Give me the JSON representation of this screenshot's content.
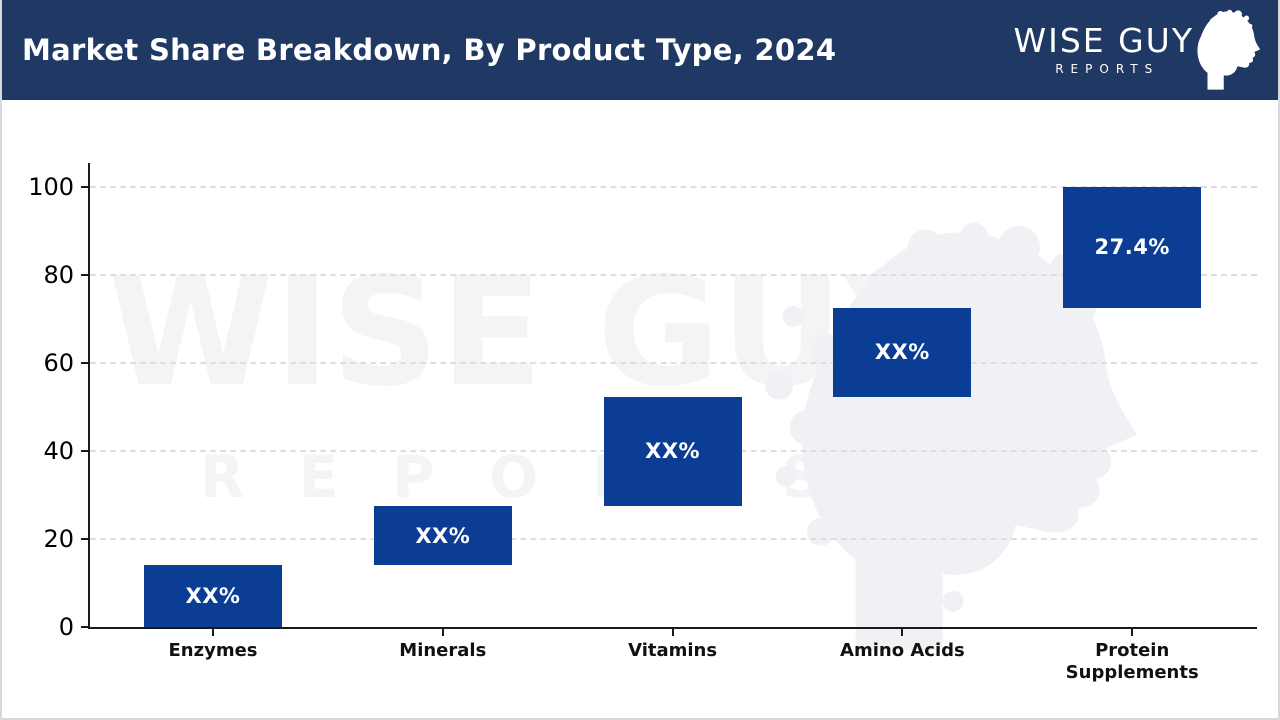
{
  "header": {
    "title": "Market Share Breakdown, By Product Type, 2024",
    "logo": {
      "name": "WISE GUY",
      "sub": "REPORTS"
    }
  },
  "watermark": {
    "name": "WISE GUY",
    "sub": "REPORTS"
  },
  "colors": {
    "header_bg": "#1F3864",
    "bar": "#0B3D94",
    "bar_label": "#FFFFFF",
    "axis": "#1A1A1A",
    "grid": "#DEDEDE",
    "watermark": "#F3F4F6"
  },
  "chart_data": {
    "type": "bar",
    "variant": "waterfall",
    "title": "Market Share Breakdown, By Product Type, 2024",
    "categories": [
      "Enzymes",
      "Minerals",
      "Vitamins",
      "Amino Acids",
      "Protein Supplements"
    ],
    "series": [
      {
        "name": "Market share (%)",
        "segments": [
          {
            "category": "Enzymes",
            "start": 0,
            "end": 14,
            "label": "XX%"
          },
          {
            "category": "Minerals",
            "start": 14,
            "end": 27.5,
            "label": "XX%"
          },
          {
            "category": "Vitamins",
            "start": 27.5,
            "end": 52.3,
            "label": "XX%"
          },
          {
            "category": "Amino Acids",
            "start": 52.3,
            "end": 72.6,
            "label": "XX%"
          },
          {
            "category": "Protein Supplements",
            "start": 72.6,
            "end": 100,
            "label": "27.4%"
          }
        ]
      }
    ],
    "ylim": [
      0,
      100
    ],
    "yticks": [
      0,
      20,
      40,
      60,
      80,
      100
    ],
    "xlabel": "",
    "ylabel": "",
    "grid": "horizontal-dashed",
    "legend_position": "none"
  }
}
